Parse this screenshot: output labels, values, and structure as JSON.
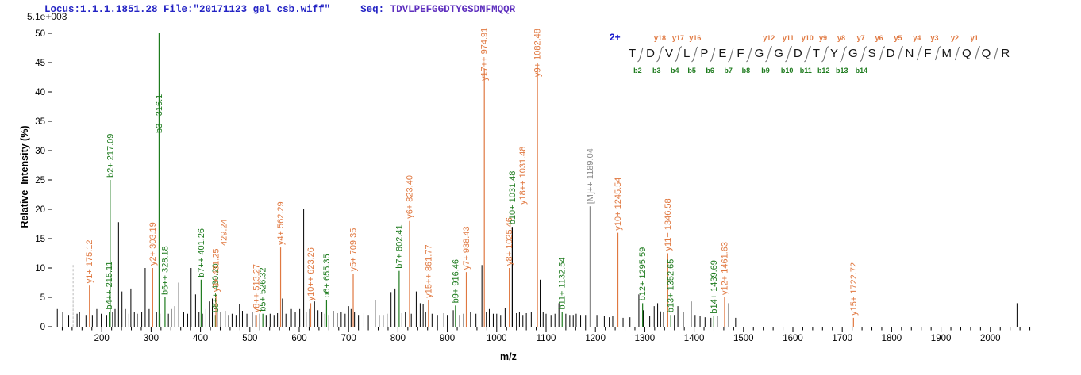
{
  "header": {
    "intensity_scale": "5.1e+003",
    "locus": "Locus:1.1.1.1851.28",
    "file": "File:\"20171123_gel_csb.wiff\"",
    "seq_label": "Seq:",
    "seq_value": "TDVLPEFGGDTYGSDNFMQQR"
  },
  "axes": {
    "x_title": "m/z",
    "y_title": "Relative  Intensity (%)",
    "x_range": [
      100,
      2100
    ],
    "y_range": [
      0,
      50
    ],
    "x_major_ticks": [
      200,
      300,
      400,
      500,
      600,
      700,
      800,
      900,
      1000,
      1100,
      1200,
      1300,
      1400,
      1500,
      1600,
      1700,
      1800,
      1900,
      2000
    ],
    "x_minor_step": 20,
    "y_ticks": [
      0,
      5,
      10,
      15,
      20,
      25,
      30,
      35,
      40,
      45,
      50
    ]
  },
  "colors": {
    "b": "#1e7b1e",
    "y": "#e07840",
    "p": "#8a8a8a",
    "background_peak": "#000000",
    "dashed": "#bbbbbb",
    "header_blue": "#2424c4",
    "seq_purple": "#5e2fbe"
  },
  "sequence_diagram": {
    "charge": "2+",
    "residues": [
      "T",
      "D",
      "V",
      "L",
      "P",
      "E",
      "F",
      "G",
      "G",
      "D",
      "T",
      "Y",
      "G",
      "S",
      "D",
      "N",
      "F",
      "M",
      "Q",
      "Q",
      "R"
    ],
    "boundaries": [
      {
        "divider": false
      },
      {
        "divider": true,
        "b": "b2"
      },
      {
        "divider": true,
        "b": "b3",
        "y": "y18"
      },
      {
        "divider": true,
        "b": "b4",
        "y": "y17"
      },
      {
        "divider": true,
        "b": "b5",
        "y": "y16"
      },
      {
        "divider": true,
        "b": "b6"
      },
      {
        "divider": true,
        "b": "b7"
      },
      {
        "divider": true,
        "b": "b8"
      },
      {
        "divider": true,
        "b": "b9",
        "y": "y12"
      },
      {
        "divider": true,
        "b": "b10",
        "y": "y11"
      },
      {
        "divider": true,
        "b": "b11",
        "y": "y10"
      },
      {
        "divider": true,
        "b": "b12",
        "y": "y9"
      },
      {
        "divider": true,
        "b": "b13",
        "y": "y8"
      },
      {
        "divider": true,
        "b": "b14",
        "y": "y7"
      },
      {
        "divider": true,
        "y": "y6"
      },
      {
        "divider": true,
        "y": "y5"
      },
      {
        "divider": true,
        "y": "y4"
      },
      {
        "divider": true,
        "y": "y3"
      },
      {
        "divider": true,
        "y": "y2"
      },
      {
        "divider": true,
        "y": "y1"
      }
    ]
  },
  "chart_data": {
    "type": "bar",
    "subtype": "ms2-spectrum",
    "xlabel": "m/z",
    "ylabel": "Relative Intensity (%)",
    "xlim": [
      100,
      2100
    ],
    "ylim": [
      0,
      50
    ],
    "dashed_peak": {
      "mz": 142,
      "intensity": 10.5
    },
    "annotated_peaks": [
      {
        "label": "y1+ 175.12",
        "mz": 175.12,
        "i": 7,
        "t": "y"
      },
      {
        "label": "b4++ 215.11",
        "mz": 215.11,
        "i": 2.5,
        "t": "b"
      },
      {
        "label": "b2+ 217.09",
        "mz": 217.09,
        "i": 25,
        "t": "b"
      },
      {
        "label": "y2+ 303.19",
        "mz": 303.19,
        "i": 10,
        "t": "y"
      },
      {
        "label": "b3+ 316.1",
        "mz": 316.1,
        "i": 50,
        "t": "b",
        "lby": 168
      },
      {
        "label": "b6++ 328.18",
        "mz": 328.18,
        "i": 5,
        "t": "b"
      },
      {
        "label": "b7++ 401.26",
        "mz": 401.26,
        "i": 8,
        "t": "b"
      },
      {
        "label": "b8++ 430.20",
        "mz": 430.2,
        "i": 2,
        "t": "b"
      },
      {
        "label": "y3+ 431.25",
        "mz": 431.25,
        "i": 5.5,
        "t": "y"
      },
      {
        "label": "429.24",
        "mz": 431.25,
        "i": 5.5,
        "t": "y",
        "label_only": true,
        "xoff": 10,
        "lby": 310
      },
      {
        "label": "y8++ 513.27",
        "mz": 513.27,
        "i": 2,
        "t": "y"
      },
      {
        "label": "b5+ 526.32",
        "mz": 526.32,
        "i": 2.2,
        "t": "b"
      },
      {
        "label": "y4+ 562.29",
        "mz": 562.29,
        "i": 13.5,
        "t": "y"
      },
      {
        "label": "y10++ 623.26",
        "mz": 623.26,
        "i": 4,
        "t": "y"
      },
      {
        "label": "b6+ 655.35",
        "mz": 655.35,
        "i": 4.5,
        "t": "b"
      },
      {
        "label": "y5+ 709.35",
        "mz": 709.35,
        "i": 9,
        "t": "y"
      },
      {
        "label": "b7+ 802.41",
        "mz": 802.41,
        "i": 9.5,
        "t": "b"
      },
      {
        "label": "y6+ 823.40",
        "mz": 823.4,
        "i": 18,
        "t": "y"
      },
      {
        "label": "y15++ 861.77",
        "mz": 861.77,
        "i": 4.5,
        "t": "y"
      },
      {
        "label": "b9+ 916.46",
        "mz": 916.46,
        "i": 3.6,
        "t": "b"
      },
      {
        "label": "y7+ 938.43",
        "mz": 938.43,
        "i": 9.3,
        "t": "y"
      },
      {
        "label": "y17++ 974.91",
        "mz": 974.91,
        "i": 44,
        "t": "y",
        "lby": 102
      },
      {
        "label": "y8+ 1025.46",
        "mz": 1025.46,
        "i": 10,
        "t": "y"
      },
      {
        "label": "b10+ 1031.48",
        "mz": 1031.48,
        "i": 17,
        "t": "b",
        "pc": "#000000"
      },
      {
        "label": "y18++ 1031.48",
        "mz": 1031.48,
        "i": 17,
        "t": "y",
        "label_only": true,
        "xoff": 13,
        "lby": 258
      },
      {
        "label": "y9+ 1082.48",
        "mz": 1082.48,
        "i": 45,
        "t": "y",
        "lby": 97
      },
      {
        "label": "b11+ 1132.54",
        "mz": 1132.54,
        "i": 2.5,
        "t": "b"
      },
      {
        "label": "[M]++ 1189.04",
        "mz": 1189.04,
        "i": 20.5,
        "t": "p"
      },
      {
        "label": "y10+ 1245.54",
        "mz": 1245.54,
        "i": 16,
        "t": "y"
      },
      {
        "label": "b12+ 1295.59",
        "mz": 1295.59,
        "i": 4,
        "t": "b"
      },
      {
        "label": "y11+ 1346.58",
        "mz": 1346.58,
        "i": 12.5,
        "t": "y"
      },
      {
        "label": "b13+ 1352.65",
        "mz": 1352.65,
        "i": 2,
        "t": "b"
      },
      {
        "label": "b14+ 1439.69",
        "mz": 1439.69,
        "i": 1.8,
        "t": "b"
      },
      {
        "label": "y12+ 1461.63",
        "mz": 1461.63,
        "i": 5,
        "t": "y"
      },
      {
        "label": "y15+ 1722.72",
        "mz": 1722.72,
        "i": 1.5,
        "t": "y"
      }
    ],
    "background_peaks": [
      [
        110,
        3
      ],
      [
        121,
        2.5
      ],
      [
        133,
        2
      ],
      [
        150,
        2.2
      ],
      [
        155,
        2.5
      ],
      [
        168,
        2
      ],
      [
        181,
        2
      ],
      [
        190,
        3
      ],
      [
        199,
        2.2
      ],
      [
        210,
        2
      ],
      [
        222,
        2.5
      ],
      [
        227,
        3
      ],
      [
        234,
        17.8
      ],
      [
        241,
        6
      ],
      [
        248,
        3
      ],
      [
        255,
        2.2
      ],
      [
        259,
        6.5
      ],
      [
        266,
        2.5
      ],
      [
        272,
        2.2
      ],
      [
        281,
        2.5
      ],
      [
        288,
        10
      ],
      [
        296,
        3
      ],
      [
        311,
        2.5
      ],
      [
        318,
        2.2
      ],
      [
        335,
        2.2
      ],
      [
        341,
        3
      ],
      [
        348,
        3.5
      ],
      [
        356,
        7.5
      ],
      [
        366,
        2.5
      ],
      [
        374,
        2.2
      ],
      [
        381,
        10
      ],
      [
        390,
        5.5
      ],
      [
        397,
        2.5
      ],
      [
        404,
        2.2
      ],
      [
        411,
        3
      ],
      [
        418,
        4.3
      ],
      [
        424,
        4.8
      ],
      [
        434,
        3
      ],
      [
        441,
        2.5
      ],
      [
        450,
        2.7
      ],
      [
        457,
        2
      ],
      [
        464,
        2.2
      ],
      [
        472,
        2
      ],
      [
        479,
        3.9
      ],
      [
        485,
        2.7
      ],
      [
        494,
        2.2
      ],
      [
        505,
        2.5
      ],
      [
        512,
        2
      ],
      [
        520,
        2.2
      ],
      [
        533,
        2
      ],
      [
        541,
        2.2
      ],
      [
        549,
        2
      ],
      [
        556,
        2.3
      ],
      [
        566,
        4.8
      ],
      [
        573,
        2.2
      ],
      [
        584,
        3
      ],
      [
        592,
        2.5
      ],
      [
        601,
        3
      ],
      [
        609,
        20
      ],
      [
        614,
        2.5
      ],
      [
        621,
        3
      ],
      [
        631,
        4.3
      ],
      [
        638,
        2.8
      ],
      [
        646,
        2.5
      ],
      [
        652,
        2.2
      ],
      [
        660,
        2
      ],
      [
        669,
        2.7
      ],
      [
        677,
        2.3
      ],
      [
        685,
        2.5
      ],
      [
        693,
        2.2
      ],
      [
        700,
        3.5
      ],
      [
        705,
        3
      ],
      [
        712,
        2.5
      ],
      [
        720,
        2
      ],
      [
        731,
        2.3
      ],
      [
        740,
        2
      ],
      [
        754,
        4.5
      ],
      [
        762,
        2
      ],
      [
        770,
        2
      ],
      [
        778,
        2.2
      ],
      [
        786,
        5.9
      ],
      [
        794,
        6.5
      ],
      [
        808,
        2.3
      ],
      [
        815,
        2.5
      ],
      [
        827,
        2.2
      ],
      [
        837,
        6
      ],
      [
        845,
        4
      ],
      [
        851,
        3.8
      ],
      [
        856,
        2.5
      ],
      [
        869,
        2.2
      ],
      [
        880,
        2
      ],
      [
        893,
        2.3
      ],
      [
        900,
        2
      ],
      [
        912,
        2.8
      ],
      [
        925,
        2
      ],
      [
        933,
        2.2
      ],
      [
        947,
        2.5
      ],
      [
        958,
        2.2
      ],
      [
        970,
        10.5
      ],
      [
        979,
        2.5
      ],
      [
        985,
        3
      ],
      [
        993,
        2.2
      ],
      [
        1000,
        2.2
      ],
      [
        1008,
        2
      ],
      [
        1017,
        3.2
      ],
      [
        1040,
        2.3
      ],
      [
        1046,
        2.5
      ],
      [
        1053,
        2
      ],
      [
        1060,
        2.3
      ],
      [
        1070,
        2.5
      ],
      [
        1088,
        8
      ],
      [
        1094,
        2.5
      ],
      [
        1100,
        2.2
      ],
      [
        1110,
        2
      ],
      [
        1118,
        2.2
      ],
      [
        1126,
        4
      ],
      [
        1140,
        2.2
      ],
      [
        1148,
        2
      ],
      [
        1155,
        2
      ],
      [
        1161,
        2.2
      ],
      [
        1170,
        2
      ],
      [
        1180,
        2
      ],
      [
        1203,
        2
      ],
      [
        1218,
        1.8
      ],
      [
        1228,
        1.6
      ],
      [
        1235,
        1.8
      ],
      [
        1256,
        1.5
      ],
      [
        1270,
        1.6
      ],
      [
        1288,
        5.5
      ],
      [
        1297,
        2.8
      ],
      [
        1310,
        1.8
      ],
      [
        1319,
        3.5
      ],
      [
        1326,
        4
      ],
      [
        1332,
        2.6
      ],
      [
        1338,
        2.5
      ],
      [
        1360,
        2
      ],
      [
        1367,
        3.5
      ],
      [
        1378,
        2.5
      ],
      [
        1394,
        4.3
      ],
      [
        1402,
        2
      ],
      [
        1412,
        1.8
      ],
      [
        1422,
        1.6
      ],
      [
        1434,
        1.5
      ],
      [
        1447,
        1.8
      ],
      [
        1470,
        4
      ],
      [
        1484,
        1.5
      ],
      [
        2054,
        4
      ]
    ]
  }
}
